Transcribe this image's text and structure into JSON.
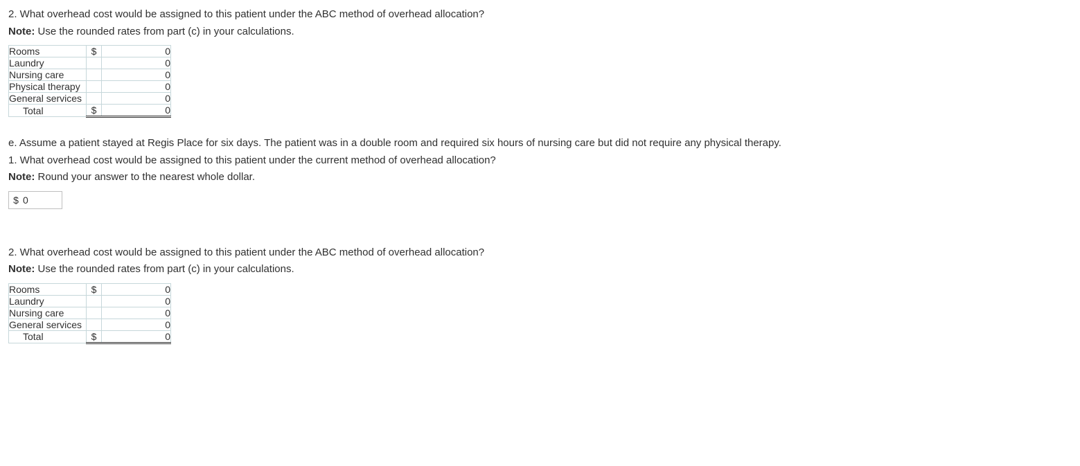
{
  "colors": {
    "input_bg": "#d5e9ef",
    "border": "#c6d7da",
    "text": "#303030"
  },
  "section_d2": {
    "question": "2. What overhead cost would be assigned to this patient under the ABC method of overhead allocation?",
    "note_label": "Note:",
    "note_text": " Use the rounded rates from part (c) in your calculations.",
    "rows": [
      {
        "label": "Rooms",
        "currency": "$",
        "value": "0"
      },
      {
        "label": "Laundry",
        "currency": "",
        "value": "0"
      },
      {
        "label": "Nursing care",
        "currency": "",
        "value": "0"
      },
      {
        "label": "Physical therapy",
        "currency": "",
        "value": "0"
      },
      {
        "label": "General services",
        "currency": "",
        "value": "0"
      }
    ],
    "total_label": "Total",
    "total_currency": "$",
    "total_value": "0"
  },
  "section_e_intro": "e. Assume a patient stayed at Regis Place for six days. The patient was in a double room and required six hours of nursing care but did not require any physical therapy.",
  "section_e1": {
    "question": "1. What overhead cost would be assigned to this patient under the current method of overhead allocation?",
    "note_label": "Note:",
    "note_text": " Round your answer to the nearest whole dollar.",
    "currency": "$",
    "value": "0"
  },
  "section_e2": {
    "question": "2. What overhead cost would be assigned to this patient under the ABC method of overhead allocation?",
    "note_label": "Note:",
    "note_text": " Use the rounded rates from part (c) in your calculations.",
    "rows": [
      {
        "label": "Rooms",
        "currency": "$",
        "value": "0"
      },
      {
        "label": "Laundry",
        "currency": "",
        "value": "0"
      },
      {
        "label": "Nursing care",
        "currency": "",
        "value": "0"
      },
      {
        "label": "General services",
        "currency": "",
        "value": "0"
      }
    ],
    "total_label": "Total",
    "total_currency": "$",
    "total_value": "0"
  }
}
